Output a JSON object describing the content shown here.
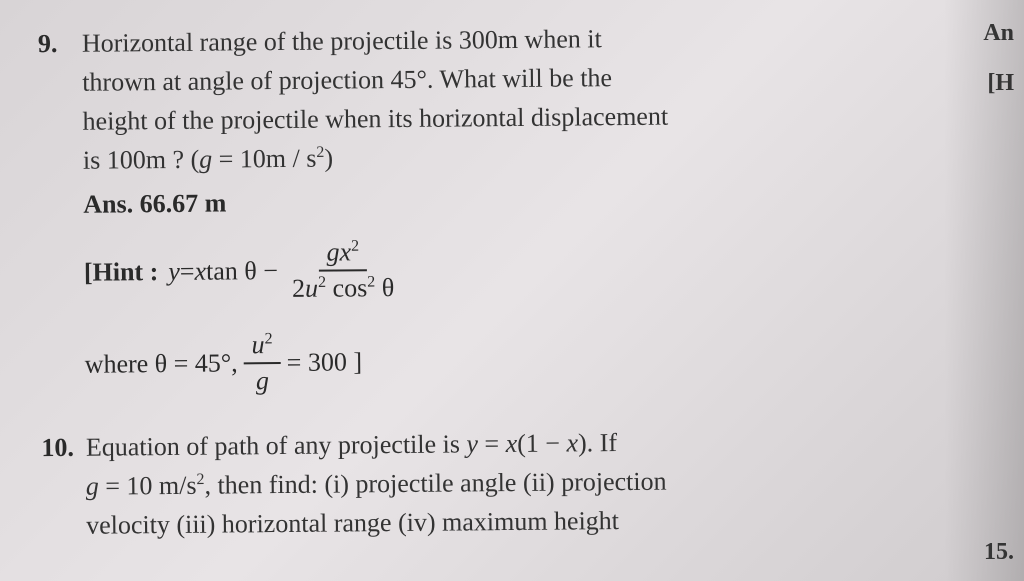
{
  "q9": {
    "number": "9.",
    "line1": "Horizontal range of the projectile is 300m when it",
    "line2": "thrown at angle of projection 45°. What will be the",
    "line3": "height of the projectile when its horizontal displacement",
    "line4_prefix": "is 100m ? (",
    "line4_var": "g",
    "line4_eq": " = 10m / s",
    "line4_exp": "2",
    "line4_suffix": ")",
    "answer_label": "Ans.",
    "answer_value": " 66.67 m",
    "hint_label": "[Hint :",
    "hint_y": "y",
    "hint_eq1": " = ",
    "hint_x": "x",
    "hint_tan": " tan θ − ",
    "frac_top_g": "g",
    "frac_top_x": "x",
    "frac_top_exp": "2",
    "frac_bot_2": "2",
    "frac_bot_u": "u",
    "frac_bot_uexp": "2",
    "frac_bot_cos": " cos",
    "frac_bot_cosexp": "2",
    "frac_bot_theta": " θ",
    "where_label": "where θ = 45°, ",
    "where_frac_top_u": "u",
    "where_frac_top_exp": "2",
    "where_frac_bot": "g",
    "where_eq": " = 300 ]"
  },
  "q10": {
    "number": "10.",
    "line1_a": "Equation of path of any projectile is ",
    "line1_y": "y",
    "line1_eq": " = ",
    "line1_x1": "x",
    "line1_paren": "(1 − ",
    "line1_x2": "x",
    "line1_close": "). If",
    "line2_g": "g",
    "line2_a": " = 10 m/s",
    "line2_exp": "2",
    "line2_b": ", then find: (i) projectile angle (ii) projection",
    "line3": "velocity (iii) horizontal range (iv) maximum height"
  },
  "margin": {
    "note1": "An",
    "note2": "[H",
    "note3": "15."
  },
  "colors": {
    "text": "#2a2a2a",
    "bg_light": "#e8e4e6",
    "bg_dark": "#d0ccce"
  }
}
